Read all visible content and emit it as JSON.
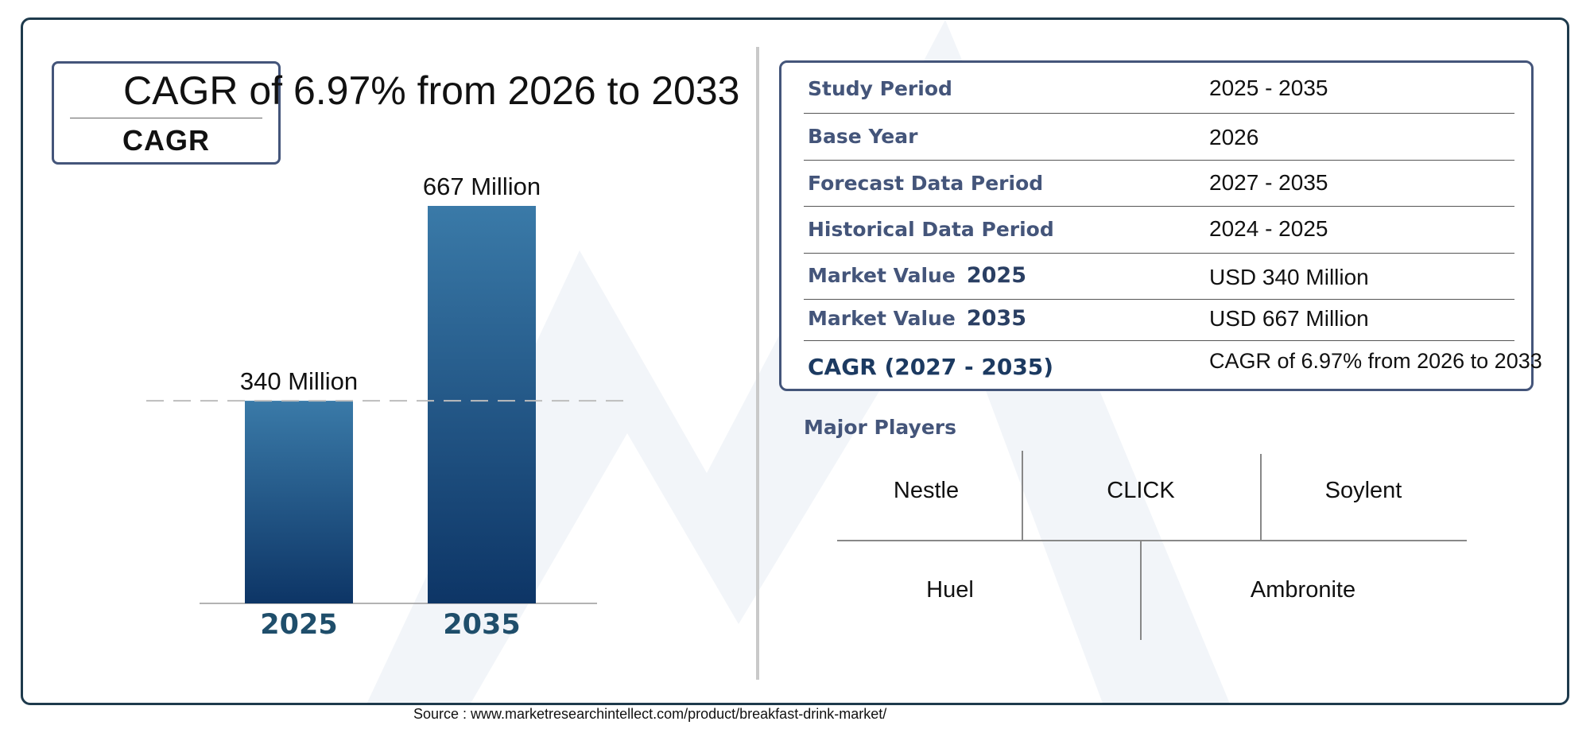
{
  "headline": "CAGR of 6.97% from 2026 to 2033",
  "cagr_box_label": "CAGR",
  "chart_data": {
    "type": "bar",
    "categories": [
      "2025",
      "2035"
    ],
    "values": [
      340,
      667
    ],
    "data_labels": [
      "340 Million",
      "667 Million"
    ],
    "ylim": [
      0,
      667
    ],
    "bar_color": "#2a5c8a",
    "reference_line": 340,
    "grid": false,
    "legend": "none"
  },
  "info_table": [
    {
      "label": "Study Period",
      "value": "2025 - 2035"
    },
    {
      "label": "Base Year",
      "value": "2026"
    },
    {
      "label": "Forecast Data Period",
      "value": "2027 - 2035"
    },
    {
      "label": "Historical Data Period",
      "value": "2024 - 2025"
    },
    {
      "label": "Market Value",
      "year": "2025",
      "value": "USD 340 Million"
    },
    {
      "label": "Market Value",
      "year": "2035",
      "value": "USD 667 Million"
    },
    {
      "label": "CAGR (2027 - 2035)",
      "value": "CAGR of 6.97% from 2026 to 2033"
    }
  ],
  "players_title": "Major Players",
  "players": [
    "Nestle",
    "CLICK",
    "Soylent",
    "Huel",
    "Ambronite"
  ],
  "source": "Source : www.marketresearchintellect.com/product/breakfast-drink-market/",
  "colors": {
    "frame": "#1e3a4c",
    "accent": "#44557a",
    "bar_top": "#3a7aa8",
    "bar_bottom": "#0d3566"
  }
}
